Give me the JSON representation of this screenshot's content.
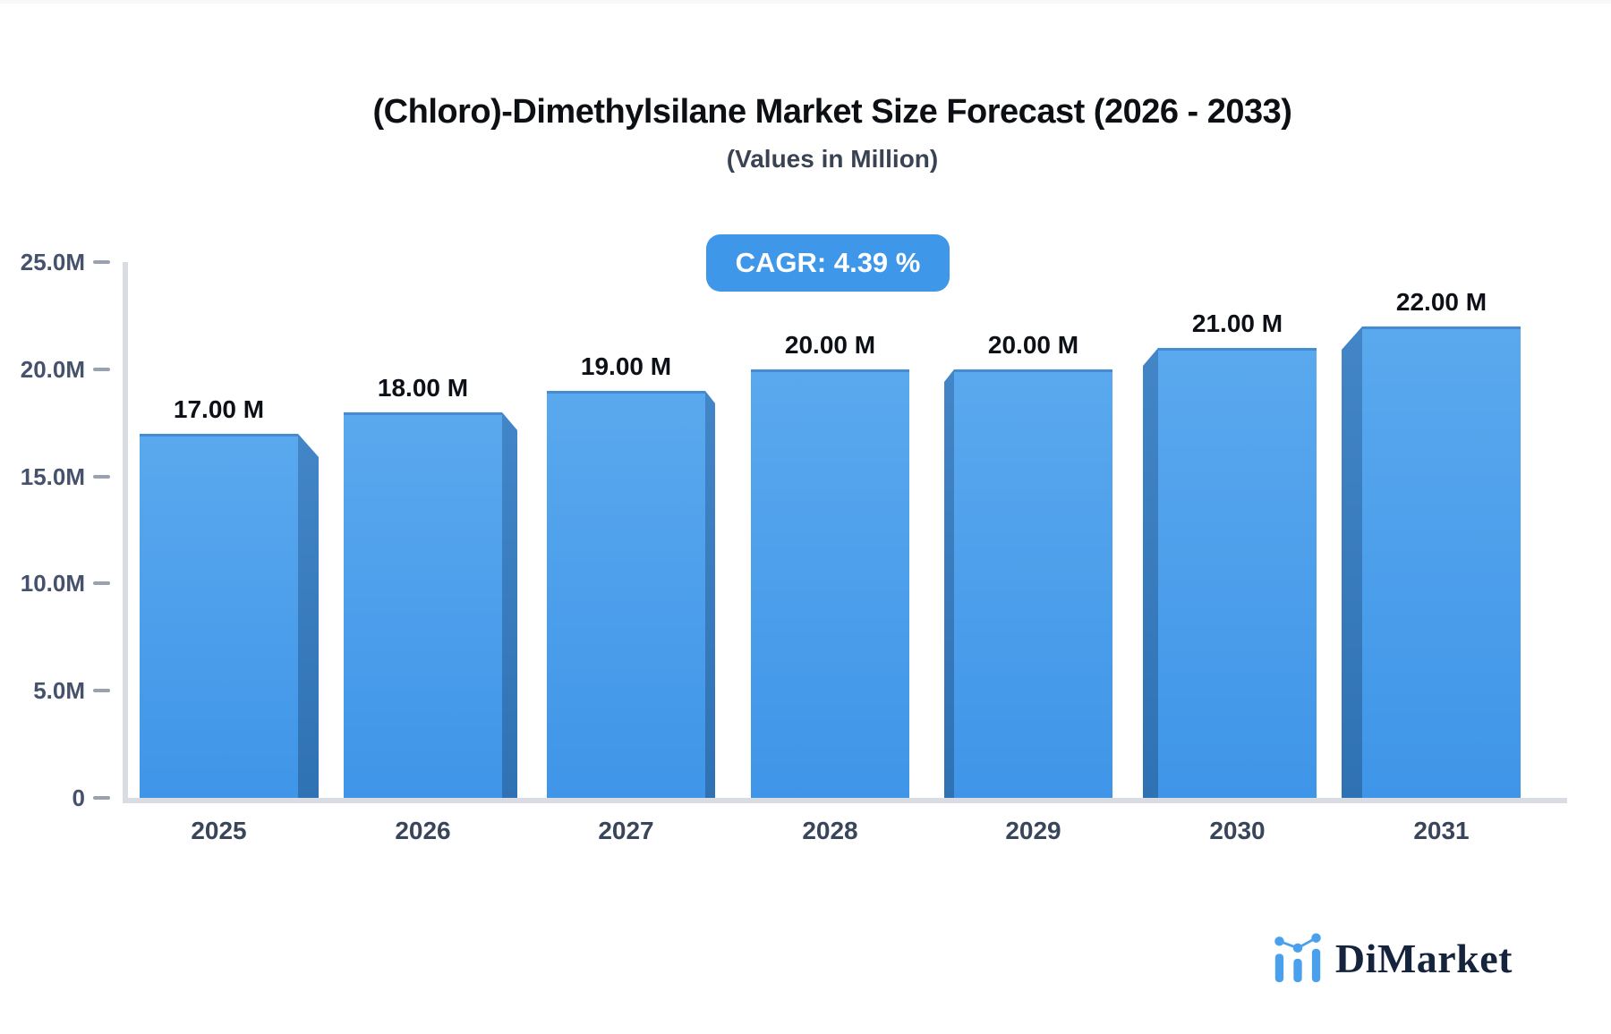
{
  "header": {
    "title": "(Chloro)-Dimethylsilane Market Size Forecast (2026 - 2033)",
    "subtitle": "(Values in Million)",
    "cagr_label": "CAGR: 4.39 %"
  },
  "brand": {
    "name": "DiMarket",
    "icon": "bar-chart-with-trend-dots-icon"
  },
  "chart_data": {
    "type": "bar",
    "title": "(Chloro)-Dimethylsilane Market Size Forecast (2026 - 2033)",
    "subtitle": "(Values in Million)",
    "cagr_annotation": "CAGR: 4.39 %",
    "categories": [
      "2025",
      "2026",
      "2027",
      "2028",
      "2029",
      "2030",
      "2031"
    ],
    "values": [
      17,
      18,
      19,
      20,
      20,
      21,
      22
    ],
    "value_labels": [
      "17.00 M",
      "18.00 M",
      "19.00 M",
      "20.00 M",
      "20.00 M",
      "21.00 M",
      "22.00 M"
    ],
    "unit": "Million",
    "xlabel": "",
    "ylabel": "",
    "ylim": [
      0,
      25
    ],
    "y_ticks": [
      {
        "value": 0,
        "label": "0"
      },
      {
        "value": 5,
        "label": "5.0M"
      },
      {
        "value": 10,
        "label": "10.0M"
      },
      {
        "value": 15,
        "label": "15.0M"
      },
      {
        "value": 20,
        "label": "20.0M"
      },
      {
        "value": 25,
        "label": "25.0M"
      }
    ],
    "grid": false,
    "legend": false,
    "style_3d": true,
    "colors": {
      "bar_face_top": "#5aa9ee",
      "bar_face_bottom": "#3f95e8",
      "bar_side_top": "#4386c8",
      "bar_side_bottom": "#2f72b4",
      "accent_badge": "#3f97e9",
      "axis_line": "#d9dde3",
      "brand_blue": "#4ba0ee",
      "brand_navy": "#16233d"
    }
  }
}
